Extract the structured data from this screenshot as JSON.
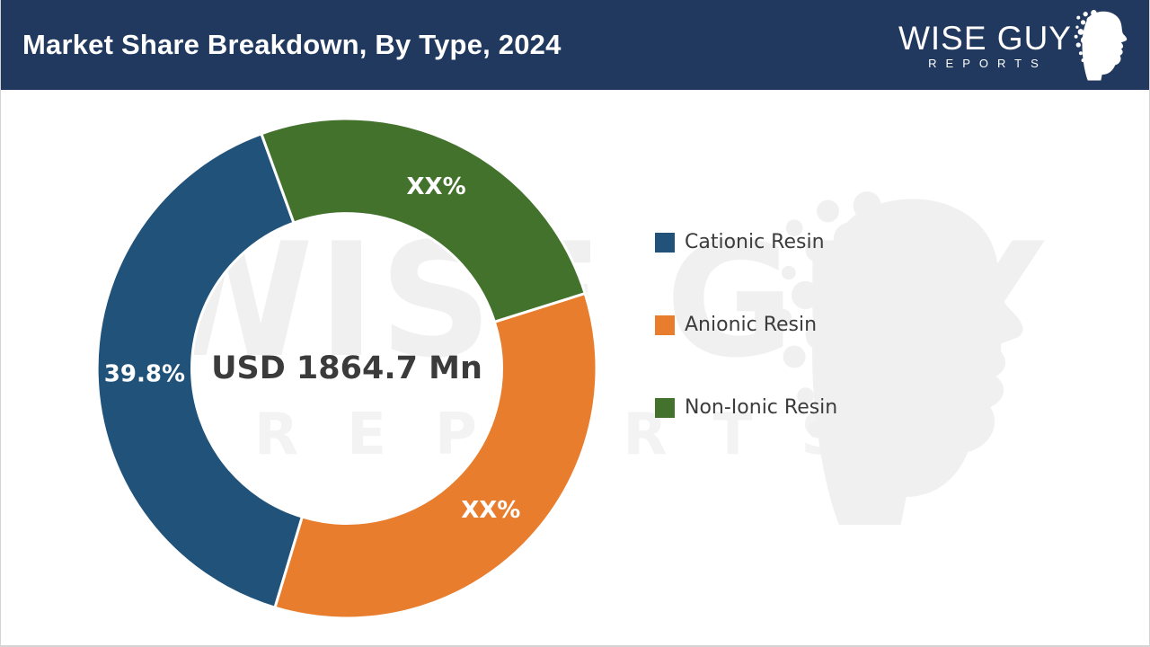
{
  "header": {
    "title": "Market Share Breakdown, By Type, 2024",
    "bg_color": "#22395f"
  },
  "logo": {
    "name": "WISE GUY",
    "sub": "REPORTS"
  },
  "watermark": {
    "name": "WISE GUY",
    "sub": "REPORTS"
  },
  "chart_data": {
    "type": "pie",
    "subtype": "donut",
    "title": "Market Share Breakdown, By Type, 2024",
    "center_label": "USD 1864.7 Mn",
    "categories": [
      "Cationic Resin",
      "Anionic Resin",
      "Non-Ionic Resin"
    ],
    "values": [
      39.8,
      34.5,
      25.7
    ],
    "slice_labels": [
      "39.8%",
      "XX%",
      "XX%"
    ],
    "colors": [
      "#20527a",
      "#e87d2e",
      "#42722c"
    ],
    "start_angle": 110,
    "direction": "ccw",
    "inner_radius_ratio": 0.62,
    "label_radius_ratio": 0.81,
    "legend_position": "right",
    "slice_border_color": "#ffffff"
  }
}
